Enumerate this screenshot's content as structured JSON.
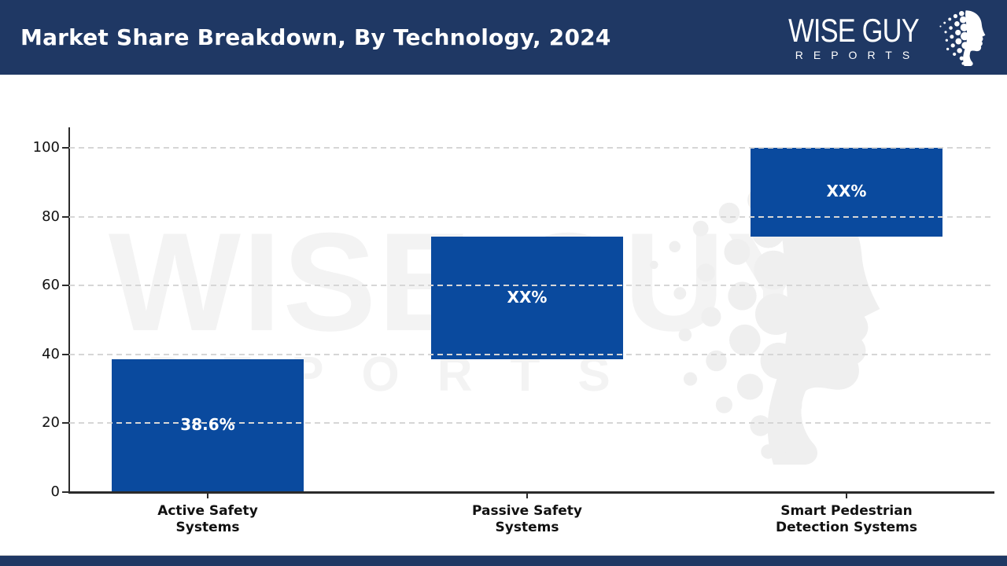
{
  "header": {
    "title": "Market Share Breakdown, By Technology, 2024",
    "logo": {
      "wordmark": "WISE GUY",
      "subtext": "REPORTS"
    }
  },
  "watermark": {
    "wordmark": "WISE GUY",
    "subtext": "REPORTS"
  },
  "chart_data": {
    "type": "bar",
    "subtype": "waterfall-stacked-percentage",
    "title": "Market Share Breakdown, By Technology, 2024",
    "categories": [
      "Active Safety Systems",
      "Passive Safety Systems",
      "Smart Pedestrian Detection Systems"
    ],
    "bars": [
      {
        "category_lines": [
          "Active Safety",
          "Systems"
        ],
        "base": 0,
        "top": 38.6,
        "label": "38.6%"
      },
      {
        "category_lines": [
          "Passive Safety",
          "Systems"
        ],
        "base": 38.6,
        "top": 74.3,
        "label": "XX%"
      },
      {
        "category_lines": [
          "Smart Pedestrian",
          "Detection Systems"
        ],
        "base": 74.3,
        "top": 100,
        "label": "XX%"
      }
    ],
    "yticks": [
      0,
      20,
      40,
      60,
      80,
      100
    ],
    "ylim": [
      0,
      106
    ],
    "grid": {
      "horizontal": true,
      "style": "dashed",
      "color": "#d6d6d6",
      "drawn_over_bars": true
    },
    "legend": null,
    "xlabel": "",
    "ylabel": "",
    "colors": {
      "bar": "#0a4a9e",
      "bar_label": "#ffffff",
      "axis": "#2b2b2b",
      "tick_label": "#111111",
      "category_label": "#111111"
    }
  },
  "theme": {
    "header_bg": "#1f3864",
    "footer_bg": "#1f3864",
    "page_bg": "#ffffff",
    "watermark_color": "#f0f0f0"
  }
}
